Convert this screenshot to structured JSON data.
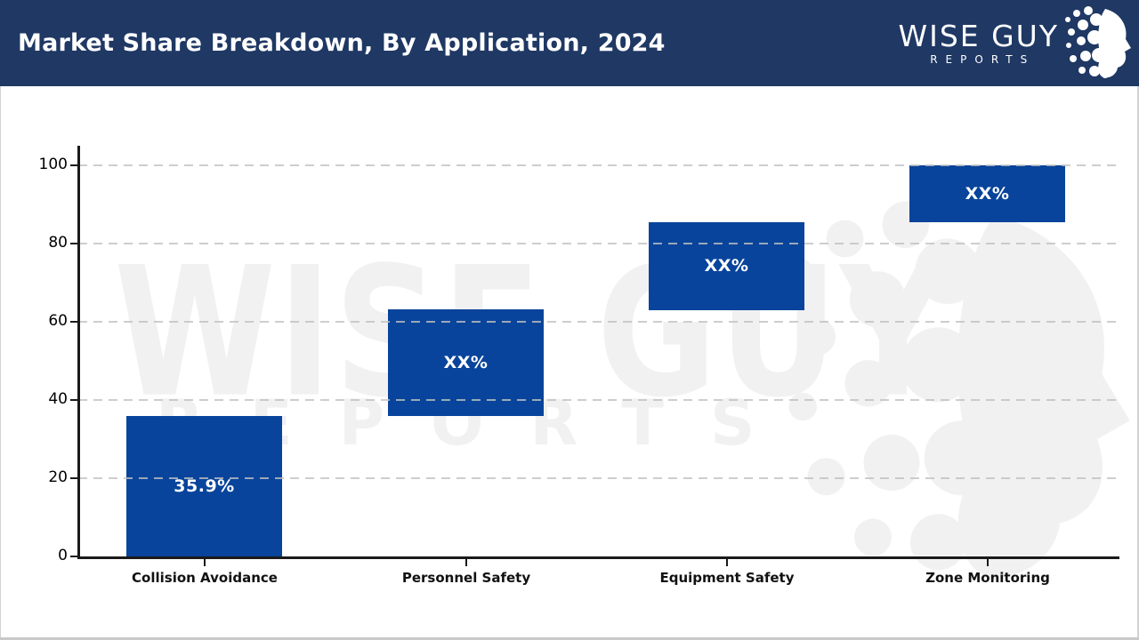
{
  "header": {
    "title": "Market Share Breakdown, By Application, 2024",
    "bg_color": "#1f3864",
    "logo": {
      "line1": "WISE GUY",
      "line2": "REPORTS"
    }
  },
  "watermark": {
    "line1": "WISE GUY",
    "line2": "REPORTS"
  },
  "chart_data": {
    "type": "bar",
    "subtype": "waterfall",
    "title": "Market Share Breakdown, By Application, 2024",
    "categories": [
      "Collision Avoidance",
      "Personnel Safety",
      "Equipment Safety",
      "Zone Monitoring"
    ],
    "segments": [
      {
        "category": "Collision Avoidance",
        "start": 0,
        "end": 35.9,
        "label": "35.9%"
      },
      {
        "category": "Personnel Safety",
        "start": 35.9,
        "end": 63.1,
        "label": "XX%"
      },
      {
        "category": "Equipment Safety",
        "start": 63.1,
        "end": 85.5,
        "label": "XX%"
      },
      {
        "category": "Zone Monitoring",
        "start": 85.5,
        "end": 100,
        "label": "XX%"
      }
    ],
    "xlabel": "",
    "ylabel": "",
    "ylim": [
      0,
      100
    ],
    "yticks": [
      0,
      20,
      40,
      60,
      80,
      100
    ],
    "grid": "dashed horizontal",
    "legend": "none",
    "bar_color": "#08449b",
    "bar_label_color": "#ffffff",
    "axis_color": "#1a1a1a",
    "grid_color": "#c1c1c1"
  }
}
